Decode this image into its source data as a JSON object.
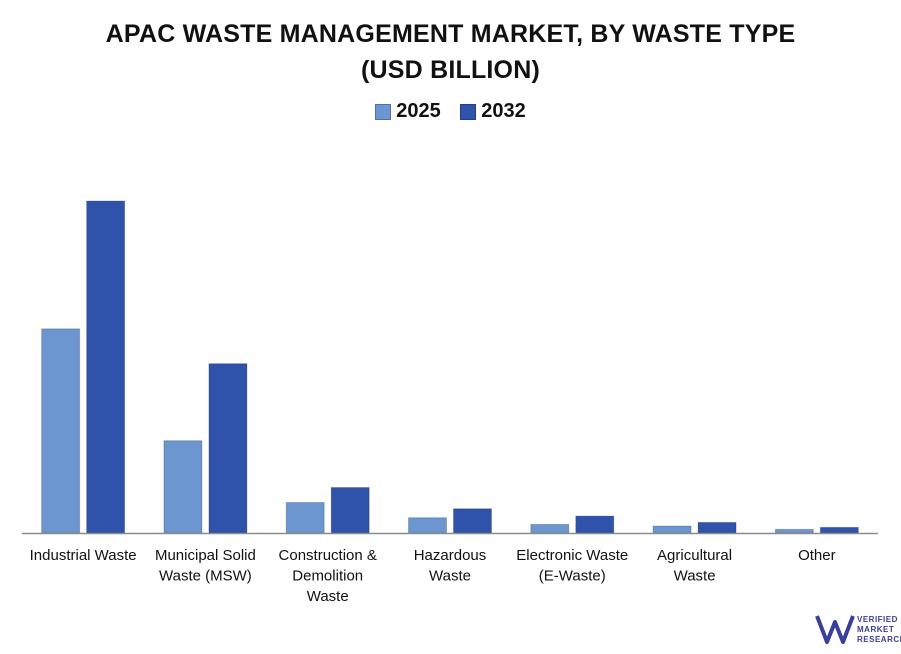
{
  "title_line1": "APAC WASTE MANAGEMENT MARKET, BY WASTE TYPE",
  "title_line2": "(USD BILLION)",
  "colors": {
    "series_2025": "#6b96cf",
    "series_2032": "#2f52ab",
    "axis": "#8c8c8c"
  },
  "chart_data": {
    "type": "bar",
    "title": "APAC WASTE MANAGEMENT MARKET, BY WASTE TYPE (USD BILLION)",
    "categories": [
      [
        "Industrial Waste"
      ],
      [
        "Municipal Solid",
        "Waste (MSW)"
      ],
      [
        "Construction &",
        "Demolition",
        "Waste"
      ],
      [
        "Hazardous",
        "Waste"
      ],
      [
        "Electronic Waste",
        "(E-Waste)"
      ],
      [
        "Agricultural",
        "Waste"
      ],
      [
        "Other"
      ]
    ],
    "series": [
      {
        "name": "2025",
        "values": [
          61.5,
          27.8,
          9.2,
          4.6,
          2.6,
          2.1,
          1.1
        ]
      },
      {
        "name": "2032",
        "values": [
          100.0,
          51.0,
          13.7,
          7.3,
          5.1,
          3.2,
          1.7
        ]
      }
    ],
    "ylim": [
      0,
      100
    ],
    "grid": false,
    "legend": "top-center"
  },
  "watermark": [
    "VERIFIED",
    "MARKET",
    "RESEARCH"
  ]
}
